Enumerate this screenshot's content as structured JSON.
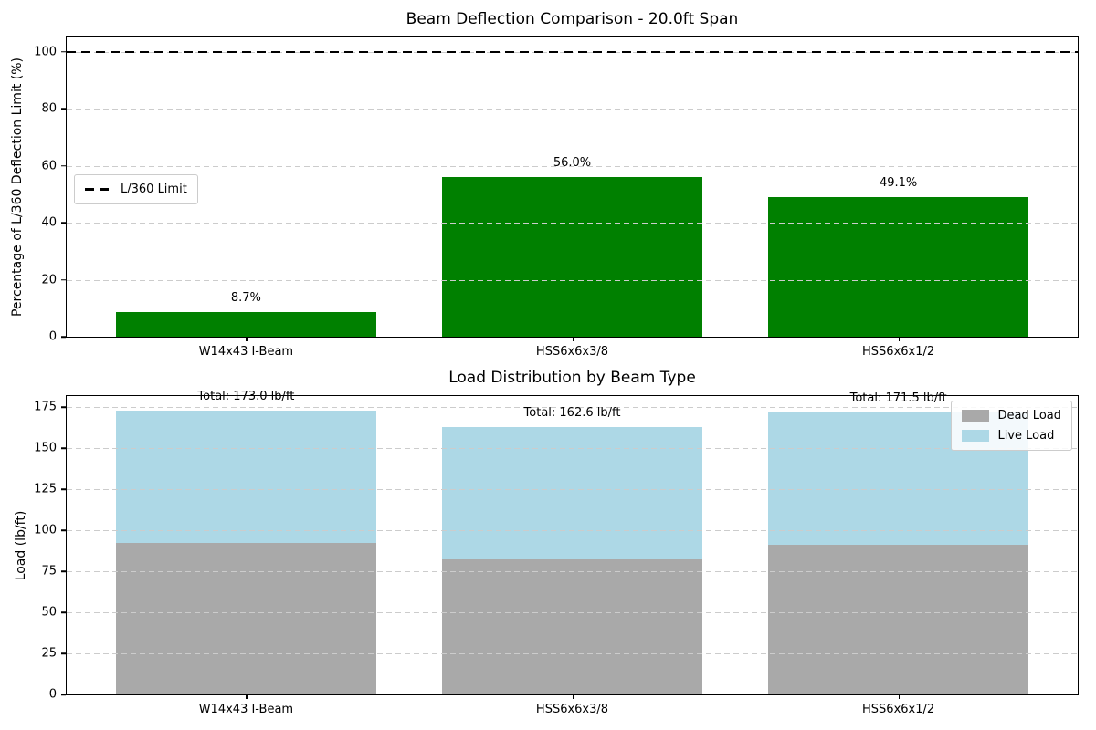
{
  "figure": {
    "background": "#ffffff",
    "text_color": "#000000",
    "grid_color": "#cccccc",
    "spine_color": "#000000"
  },
  "chart_data": [
    {
      "type": "bar",
      "title": "Beam Deflection Comparison - 20.0ft Span",
      "ylabel": "Percentage of L/360 Deflection Limit (%)",
      "xlabel": "",
      "categories": [
        "W14x43 I-Beam",
        "HSS6x6x3/8",
        "HSS6x6x1/2"
      ],
      "values": [
        8.7,
        56.0,
        49.1
      ],
      "bar_labels": [
        "8.7%",
        "56.0%",
        "49.1%"
      ],
      "bar_color": "#008000",
      "yticks": [
        0,
        20,
        40,
        60,
        80,
        100
      ],
      "ylim": [
        0,
        105
      ],
      "grid": "horizontal-dashed",
      "reference_line": {
        "y": 100,
        "color": "#000000",
        "style": "dashed",
        "label": "L/360 Limit"
      },
      "legend": {
        "position": "left",
        "entries": [
          {
            "label": "L/360 Limit",
            "swatch": "dashed-line",
            "color": "#000000"
          }
        ]
      }
    },
    {
      "type": "stacked-bar",
      "title": "Load Distribution by Beam Type",
      "ylabel": "Load (lb/ft)",
      "xlabel": "",
      "categories": [
        "W14x43 I-Beam",
        "HSS6x6x3/8",
        "HSS6x6x1/2"
      ],
      "series": [
        {
          "name": "Dead Load",
          "color": "#a9a9a9",
          "values": [
            92.5,
            82.1,
            91.0
          ]
        },
        {
          "name": "Live Load",
          "color": "#add8e6",
          "values": [
            80.5,
            80.5,
            80.5
          ]
        }
      ],
      "totals": [
        173.0,
        162.6,
        171.5
      ],
      "total_labels": [
        "Total: 173.0 lb/ft",
        "Total: 162.6 lb/ft",
        "Total: 171.5 lb/ft"
      ],
      "yticks": [
        0,
        25,
        50,
        75,
        100,
        125,
        150,
        175
      ],
      "ylim": [
        0,
        181.7
      ],
      "grid": "horizontal-dashed",
      "legend": {
        "position": "top-right",
        "entries": [
          {
            "label": "Dead Load",
            "swatch": "rect",
            "color": "#a9a9a9"
          },
          {
            "label": "Live Load",
            "swatch": "rect",
            "color": "#add8e6"
          }
        ]
      }
    }
  ]
}
